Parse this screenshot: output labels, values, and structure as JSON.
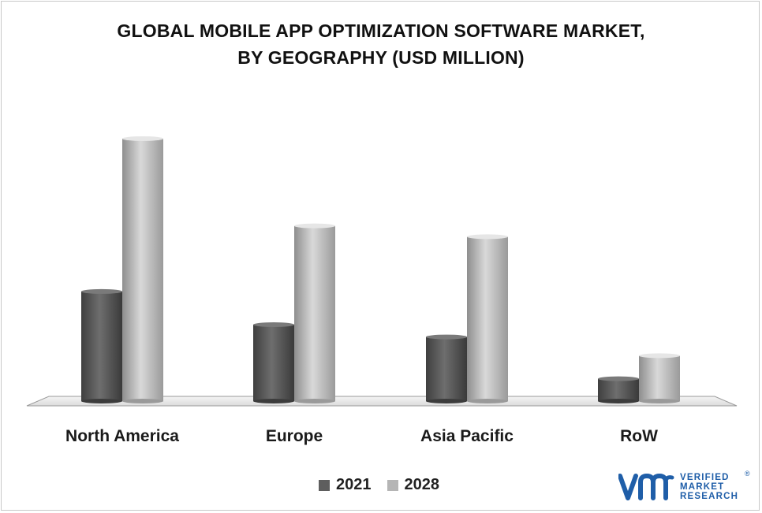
{
  "chart_data": {
    "type": "bar",
    "title_lines": [
      "GLOBAL MOBILE APP OPTIMIZATION SOFTWARE MARKET,",
      "BY GEOGRAPHY (USD MILLION)"
    ],
    "categories": [
      "North America",
      "Europe",
      "Asia Pacific",
      "RoW"
    ],
    "series": [
      {
        "name": "2021",
        "values": [
          152,
          106,
          89,
          31
        ],
        "color": "#5e5e5e"
      },
      {
        "name": "2028",
        "values": [
          364,
          243,
          228,
          63
        ],
        "color": "#b5b5b5"
      }
    ],
    "ylim": [
      0,
      400
    ],
    "grid": false,
    "legend_position": "bottom",
    "axes_values_shown": false
  },
  "logo": {
    "mark": "vmr",
    "lines": [
      "VERIFIED",
      "MARKET",
      "RESEARCH"
    ],
    "registered": "®"
  }
}
